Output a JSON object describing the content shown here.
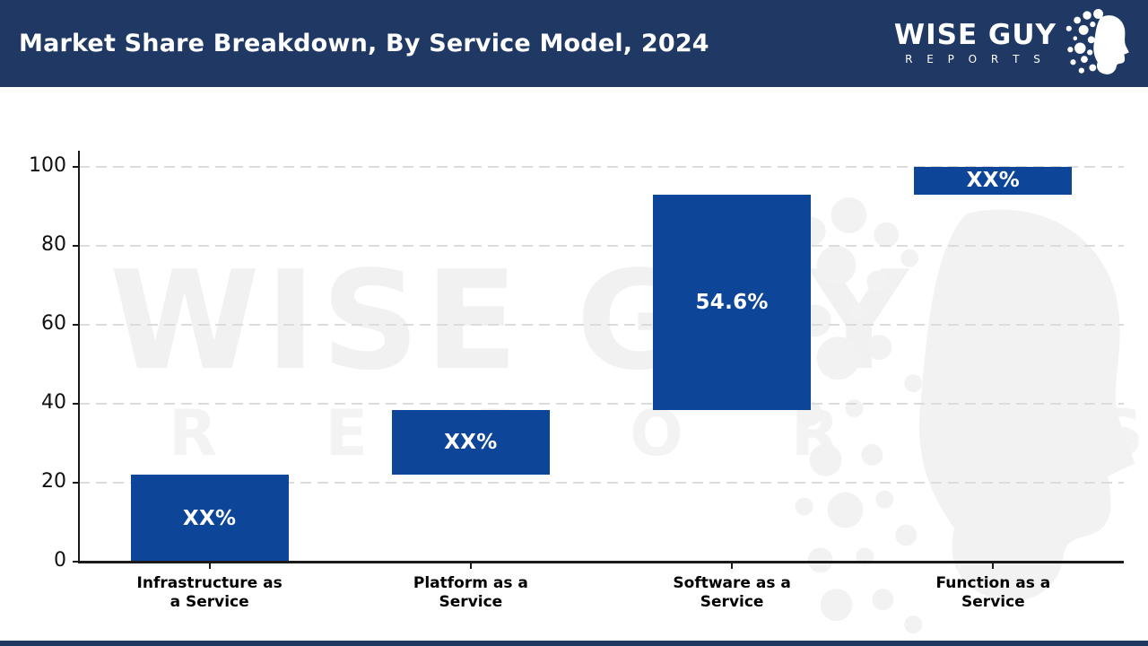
{
  "header": {
    "title": "Market Share Breakdown, By Service Model, 2024",
    "brand_name": "WISE GUY",
    "brand_subtitle": "R E P O R T S"
  },
  "watermark": {
    "text_primary": "WISE GUY",
    "text_secondary": "R E P O R T S"
  },
  "colors": {
    "header_bg": "#1f3864",
    "footer_bg": "#1f3864",
    "bar_fill": "#0d4698",
    "bar_label_text": "#ffffff",
    "grid_line": "#dcdcdc",
    "axis_line": "#1a1a1a",
    "tick_text": "#111111",
    "watermark": "#f1f1f1"
  },
  "chart_data": {
    "type": "bar",
    "subtype": "floating_segment_waterfall",
    "title": "Market Share Breakdown, By Service Model, 2024",
    "xlabel": "",
    "ylabel": "",
    "ylim": [
      0,
      100
    ],
    "yticks": [
      0,
      20,
      40,
      60,
      80,
      100
    ],
    "grid": "horizontal_dashed",
    "legend": "none",
    "categories": [
      "Infrastructure as\na Service",
      "Platform as a\nService",
      "Software as a\nService",
      "Function as a\nService"
    ],
    "bars": [
      {
        "name": "Infrastructure as a Service",
        "start": 0,
        "end": 22,
        "value_label": "XX%"
      },
      {
        "name": "Platform as a Service",
        "start": 22,
        "end": 38.4,
        "value_label": "XX%"
      },
      {
        "name": "Software as a Service",
        "start": 38.4,
        "end": 93,
        "value_label": "54.6%"
      },
      {
        "name": "Function as a Service",
        "start": 93,
        "end": 100,
        "value_label": "XX%"
      }
    ]
  }
}
